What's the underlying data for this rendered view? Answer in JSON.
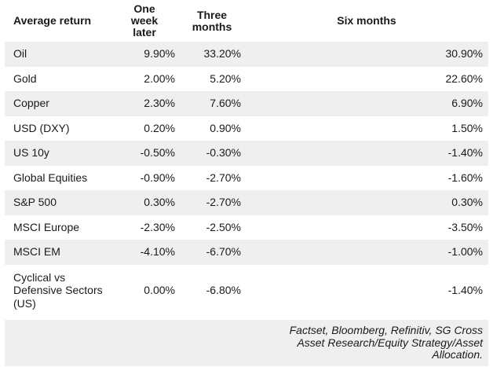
{
  "chart_data": {
    "type": "table",
    "columns": [
      "Average return",
      "One week later",
      "Three months",
      "Six months"
    ],
    "rows": [
      [
        "Oil",
        "9.90%",
        "33.20%",
        "30.90%"
      ],
      [
        "Gold",
        "2.00%",
        "5.20%",
        "22.60%"
      ],
      [
        "Copper",
        "2.30%",
        "7.60%",
        "6.90%"
      ],
      [
        "USD (DXY)",
        "0.20%",
        "0.90%",
        "1.50%"
      ],
      [
        "US 10y",
        "-0.50%",
        "-0.30%",
        "-1.40%"
      ],
      [
        "Global Equities",
        "-0.90%",
        "-2.70%",
        "-1.60%"
      ],
      [
        "S&P 500",
        "0.30%",
        "-2.70%",
        "0.30%"
      ],
      [
        "MSCI Europe",
        "-2.30%",
        "-2.50%",
        "-3.50%"
      ],
      [
        "MSCI EM",
        "-4.10%",
        "-6.70%",
        "-1.00%"
      ],
      [
        "Cyclical vs Defensive Sectors (US)",
        "0.00%",
        "-6.80%",
        "-1.40%"
      ]
    ],
    "source_note": "Factset, Bloomberg, Refinitiv, SG Cross Asset Research/Equity Strategy/Asset Allocation.",
    "layout": {
      "stripe_color": "#efefef",
      "text_color": "#1a1a1a",
      "background": "#ffffff",
      "grid": "striped-rows",
      "value_alignment": "right"
    }
  }
}
